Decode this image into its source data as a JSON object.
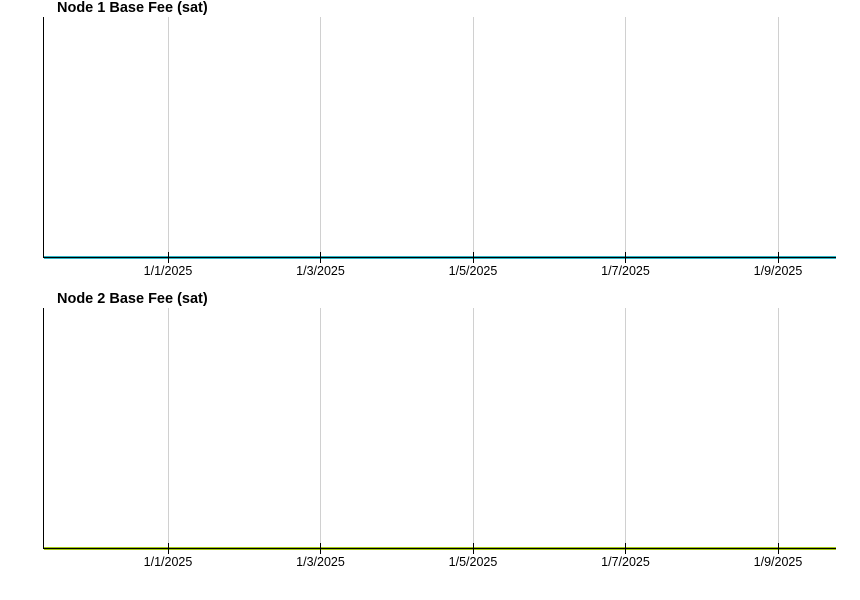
{
  "chart_data": [
    {
      "type": "line",
      "title": "Node 1 Base Fee (sat)",
      "xlabel": "",
      "ylabel": "",
      "x_ticks": [
        "1/1/2025",
        "1/3/2025",
        "1/5/2025",
        "1/7/2025",
        "1/9/2025"
      ],
      "series": [
        {
          "name": "Node 1 Base Fee (sat)",
          "color": "#2eb4c4",
          "values": [
            0,
            0,
            0,
            0,
            0
          ]
        }
      ],
      "ylim": [
        0,
        null
      ],
      "y_tick_labels": [],
      "grid": "vertical gridlines only",
      "legend": "none",
      "annotation": "flat line at 0 running along the x-axis baseline"
    },
    {
      "type": "line",
      "title": "Node 2 Base Fee (sat)",
      "xlabel": "",
      "ylabel": "",
      "x_ticks": [
        "1/1/2025",
        "1/3/2025",
        "1/5/2025",
        "1/7/2025",
        "1/9/2025"
      ],
      "series": [
        {
          "name": "Node 2 Base Fee (sat)",
          "color": "#a2c613",
          "values": [
            0,
            0,
            0,
            0,
            0
          ]
        }
      ],
      "ylim": [
        0,
        null
      ],
      "y_tick_labels": [],
      "grid": "vertical gridlines only",
      "legend": "none",
      "annotation": "flat line at 0 running along the x-axis baseline"
    }
  ],
  "colors": {
    "background": "#ffffff",
    "axis": "#000000",
    "gridline": "#d0d0d0",
    "tick": "#000000",
    "title_text": "#000000",
    "label_text": "#000000",
    "node1_series": "#2eb4c4",
    "node2_series": "#a2c613"
  }
}
